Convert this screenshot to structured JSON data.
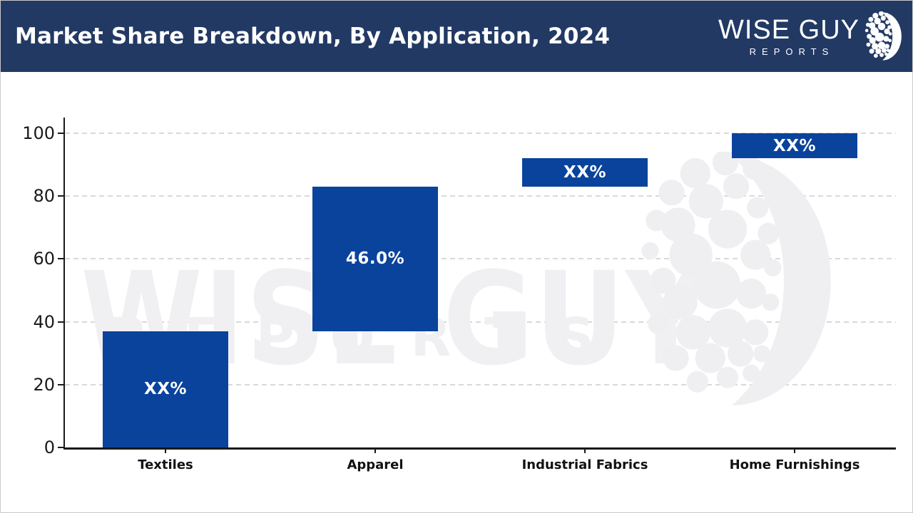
{
  "header": {
    "title": "Market Share Breakdown, By Application, 2024",
    "background_color": "#223964",
    "brand": {
      "name": "WISE GUY",
      "sub": "REPORTS"
    }
  },
  "watermark": {
    "name": "WISE GUY",
    "sub": "REPORTS"
  },
  "chart_data": {
    "type": "bar",
    "subtype": "waterfall",
    "title": "Market Share Breakdown, By Application, 2024",
    "categories": [
      "Textiles",
      "Apparel",
      "Industrial Fabrics",
      "Home Furnishings"
    ],
    "segment_starts": [
      0,
      37,
      83,
      92
    ],
    "segment_ends": [
      37,
      83,
      92,
      100
    ],
    "values": [
      37,
      46,
      9,
      8
    ],
    "bar_labels": [
      "XX%",
      "46.0%",
      "XX%",
      "XX%"
    ],
    "xlabel": "",
    "ylabel": "",
    "yticks": [
      0,
      20,
      40,
      60,
      80,
      100
    ],
    "ylim": [
      0,
      105
    ],
    "grid": "horizontal-dashed",
    "legend": "none",
    "bar_color": "#0A439C",
    "bar_label_color": "#ffffff",
    "grid_color": "#d9d9d9",
    "axis_color": "#1a1a1a"
  }
}
